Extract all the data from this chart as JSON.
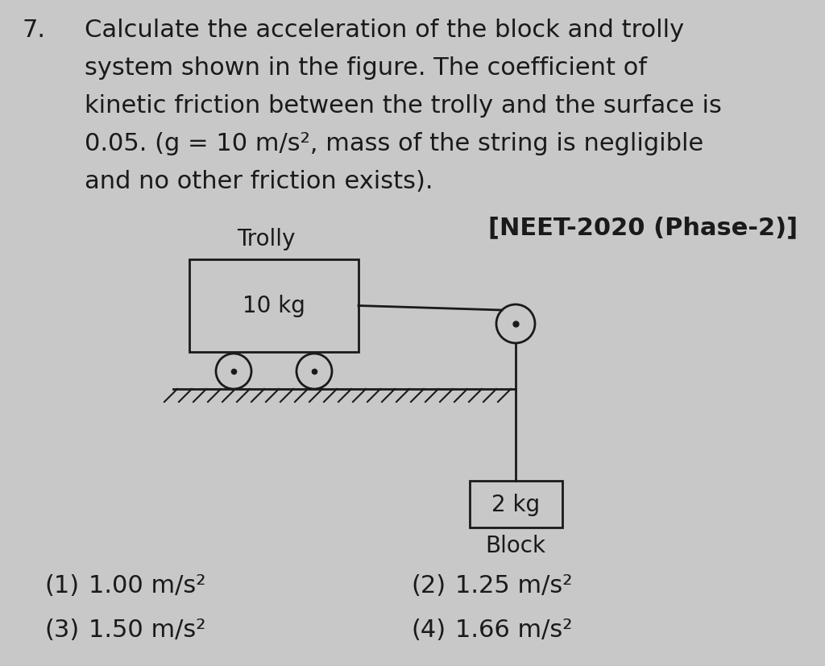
{
  "background_color": "#c8c8c8",
  "question_number": "7.",
  "question_lines": [
    "Calculate the acceleration of the block and trolly",
    "system shown in the figure. The coefficient of",
    "kinetic friction between the trolly and the surface is",
    "0.05. (g = 10 m/s², mass of the string is negligible",
    "and no other friction exists)."
  ],
  "reference": "[NEET-2020 (Phase-2)]",
  "trolley_label": "Trolly",
  "trolley_mass": "10 kg",
  "block_mass": "2 kg",
  "block_label": "Block",
  "options": [
    {
      "num": "(1)",
      "val": "1.00 m/s²"
    },
    {
      "num": "(2)",
      "val": "1.25 m/s²"
    },
    {
      "num": "(3)",
      "val": "1.50 m/s²"
    },
    {
      "num": "(4)",
      "val": "1.66 m/s²"
    }
  ],
  "text_color": "#1a1a1a",
  "diagram_color": "#1a1a1a",
  "font_size_question": 22,
  "font_size_reference": 22,
  "font_size_options": 22,
  "font_size_diagram_label": 20,
  "font_size_diagram_mass": 20
}
